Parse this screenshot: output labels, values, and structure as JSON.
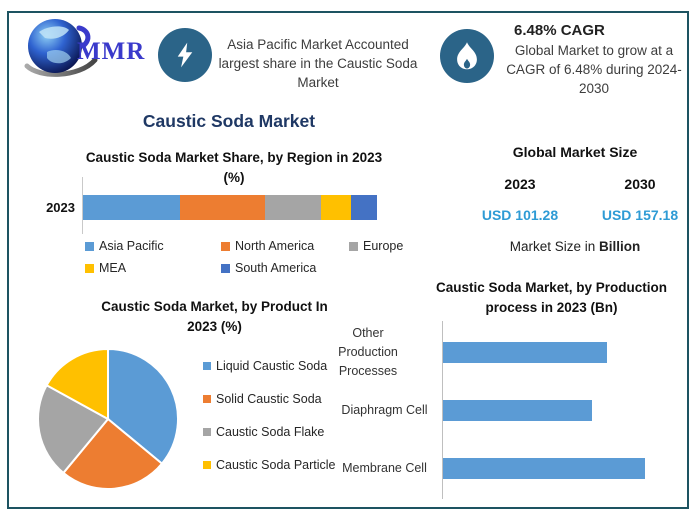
{
  "brand": {
    "logo_text": "MMR"
  },
  "header": {
    "highlight1": {
      "icon": "lightning-icon",
      "text": "Asia Pacific Market Accounted largest share in the Caustic Soda Market"
    },
    "highlight2": {
      "icon": "flame-icon",
      "title": "6.48% CAGR",
      "text": "Global Market to grow at a CAGR of 6.48% during 2024-2030"
    }
  },
  "page_title": "Caustic Soda Market",
  "market_size": {
    "title": "Global Market Size",
    "years": [
      "2023",
      "2030"
    ],
    "values": [
      "USD 101.28",
      "USD 157.18"
    ],
    "footnote_prefix": "Market Size in ",
    "footnote_bold": "Billion"
  },
  "colors": {
    "icon_circle": "#2B6488",
    "frame_border": "#1D5361",
    "page_title_blue": "#1F3864",
    "value_blue": "#2E9BD5",
    "body_text": "#3D3D3D",
    "series_blue": "#5B9BD5",
    "series_orange": "#ED7D31",
    "series_gray": "#A5A5A5",
    "series_yellow": "#FFC000",
    "series_navy": "#4472C4"
  },
  "chart_data": [
    {
      "type": "bar",
      "stacked": true,
      "orientation": "horizontal",
      "title": "Caustic Soda Market Share, by Region in 2023 (%)",
      "title_lines": [
        "Caustic Soda Market Share, by Region in 2023",
        "(%)"
      ],
      "categories": [
        "2023"
      ],
      "series": [
        {
          "name": "Asia Pacific",
          "color": "#5B9BD5",
          "values": [
            33
          ]
        },
        {
          "name": "North America",
          "color": "#ED7D31",
          "values": [
            29
          ]
        },
        {
          "name": "Europe",
          "color": "#A5A5A5",
          "values": [
            19
          ]
        },
        {
          "name": "MEA",
          "color": "#FFC000",
          "values": [
            10
          ]
        },
        {
          "name": "South America",
          "color": "#4472C4",
          "values": [
            9
          ]
        }
      ],
      "unit": "%",
      "note": "segment sizes estimated from bar lengths; no data labels shown",
      "legend_position": "bottom"
    },
    {
      "type": "pie",
      "title": "Caustic Soda Market, by Product In 2023 (%)",
      "title_lines": [
        "Caustic Soda Market, by Product In",
        "2023 (%)"
      ],
      "labels": [
        "Liquid Caustic Soda",
        "Solid Caustic Soda",
        "Caustic Soda Flake",
        "Caustic Soda Particle"
      ],
      "values": [
        36,
        25,
        22,
        17
      ],
      "colors": [
        "#5B9BD5",
        "#ED7D31",
        "#A5A5A5",
        "#FFC000"
      ],
      "unit": "%",
      "note": "slice sizes estimated from pie angles; no data labels shown",
      "legend_position": "right"
    },
    {
      "type": "bar",
      "orientation": "horizontal",
      "title": "Caustic Soda Market, by Production process in 2023 (Bn)",
      "title_lines": [
        "Caustic Soda Market, by Production",
        "process in 2023 (Bn)"
      ],
      "categories": [
        "Other Production Processes",
        "Diaphragm Cell",
        "Membrane Cell"
      ],
      "values": [
        81,
        74,
        100
      ],
      "color": "#5B9BD5",
      "note": "no value axis shown; values are relative bar lengths with Membrane Cell = 100"
    }
  ]
}
